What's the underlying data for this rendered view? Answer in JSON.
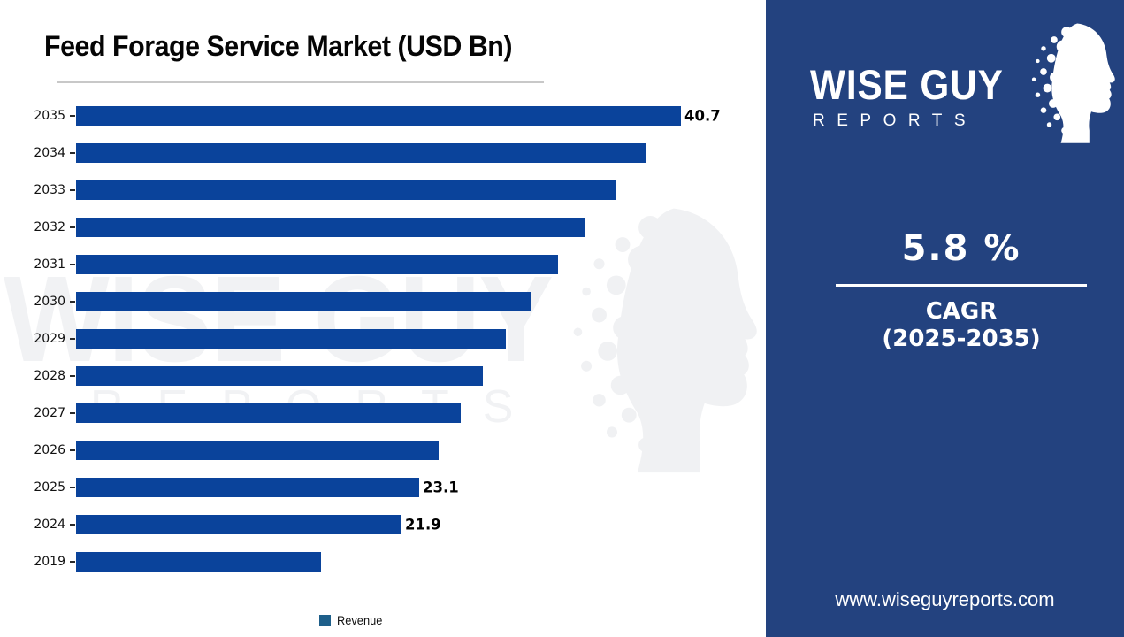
{
  "chart_data": {
    "type": "bar",
    "orientation": "horizontal",
    "title": "Feed Forage Service Market (USD Bn)",
    "categories": [
      "2035",
      "2034",
      "2033",
      "2032",
      "2031",
      "2030",
      "2029",
      "2028",
      "2027",
      "2026",
      "2025",
      "2024",
      "2019"
    ],
    "values": [
      40.7,
      38.4,
      36.3,
      34.3,
      32.4,
      30.6,
      28.9,
      27.4,
      25.9,
      24.4,
      23.1,
      21.9,
      16.5
    ],
    "data_labels": [
      "40.7",
      "",
      "",
      "",
      "",
      "",
      "",
      "",
      "",
      "",
      "23.1",
      "21.9",
      ""
    ],
    "xlabel": "",
    "ylabel": "",
    "xlim": [
      0,
      43.5
    ],
    "grid": false,
    "bar_color": "#0a439b",
    "legend": {
      "position": "bottom",
      "entries": [
        {
          "label": "Revenue",
          "color": "#1e5f8a"
        }
      ]
    }
  },
  "watermark": {
    "line1": "WISE GUY",
    "line2": "REPORTS"
  },
  "panel": {
    "bg_color": "#23427f",
    "logo": {
      "line1": "WISE GUY",
      "line2": "REPORTS"
    },
    "cagr": {
      "value": "5.8 %",
      "label_line1": "CAGR",
      "label_line2": "(2025-2035)"
    },
    "website": "www.wiseguyreports.com"
  }
}
